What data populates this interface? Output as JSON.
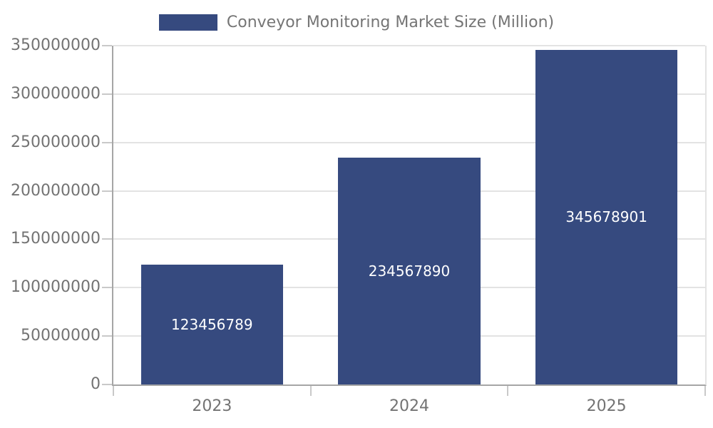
{
  "colors": {
    "background": "#ffffff",
    "bar": "#364a7f",
    "bar_label": "#ffffff",
    "axis_line": "#a6a6a6",
    "grid_line": "#e3e3e3",
    "tick": "#c9c9c9",
    "text": "#737373",
    "legend_text": "#757575"
  },
  "chart_data": {
    "type": "bar",
    "title": "Conveyor Monitoring Market Size (Million)",
    "legend": [
      "Conveyor Monitoring Market Size (Million)"
    ],
    "legend_position": "top-center",
    "categories": [
      "2023",
      "2024",
      "2025"
    ],
    "values": [
      123456789,
      234567890,
      345678901
    ],
    "bar_value_labels": [
      "123456789",
      "234567890",
      "345678901"
    ],
    "xlabel": "",
    "ylabel": "",
    "ylim": [
      0,
      350000000
    ],
    "yticks": [
      0,
      50000000,
      100000000,
      150000000,
      200000000,
      250000000,
      300000000,
      350000000
    ],
    "ytick_labels": [
      "0",
      "50000000",
      "100000000",
      "150000000",
      "200000000",
      "250000000",
      "300000000",
      "350000000"
    ],
    "grid": true
  }
}
